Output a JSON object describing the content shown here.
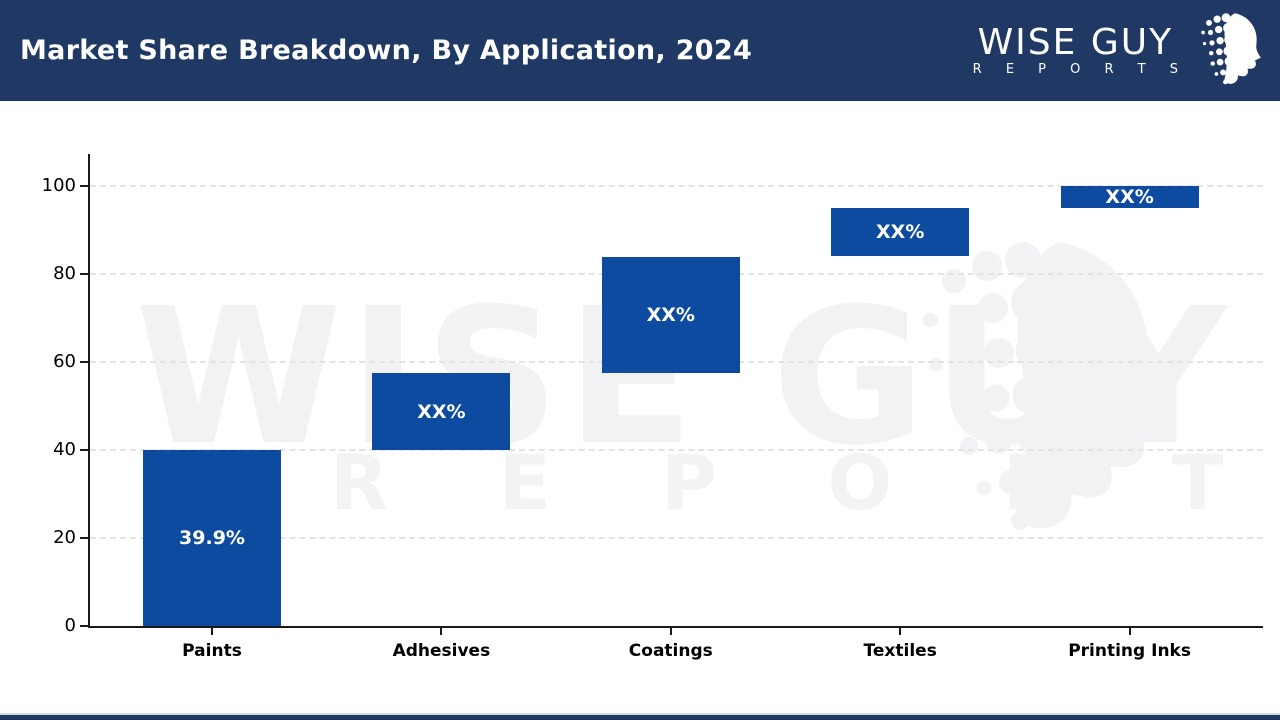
{
  "header": {
    "title": "Market Share Breakdown, By Application, 2024",
    "logo": {
      "line1": "WISE GUY",
      "line2": "R E P O R T S"
    }
  },
  "watermark": {
    "line1": "WISE GUY",
    "line2": "R E P O R T S"
  },
  "colors": {
    "header_bg": "#1f3864",
    "bar": "#0d4ba0",
    "grid": "#e3e3e3",
    "axis": "#1a1a1a",
    "bar_label": "#ffffff",
    "watermark": "#f2f2f4",
    "footer_bar": "#1f3864"
  },
  "chart_data": {
    "type": "bar",
    "subtype": "waterfall",
    "title": "Market Share Breakdown, By Application, 2024",
    "categories": [
      "Paints",
      "Adhesives",
      "Coatings",
      "Textiles",
      "Printing Inks"
    ],
    "bars": [
      {
        "category": "Paints",
        "start": 0,
        "end": 39.9,
        "label": "39.9%"
      },
      {
        "category": "Adhesives",
        "start": 40.0,
        "end": 57.4,
        "label": "XX%"
      },
      {
        "category": "Coatings",
        "start": 57.4,
        "end": 83.8,
        "label": "XX%"
      },
      {
        "category": "Textiles",
        "start": 84.0,
        "end": 95.0,
        "label": "XX%"
      },
      {
        "category": "Printing Inks",
        "start": 95.0,
        "end": 100.0,
        "label": "XX%"
      }
    ],
    "ylim": [
      0,
      105
    ],
    "yticks": [
      0,
      20,
      40,
      60,
      80,
      100
    ],
    "grid": "horizontal-dashed",
    "legend": "none",
    "xlabel": "",
    "ylabel": ""
  }
}
